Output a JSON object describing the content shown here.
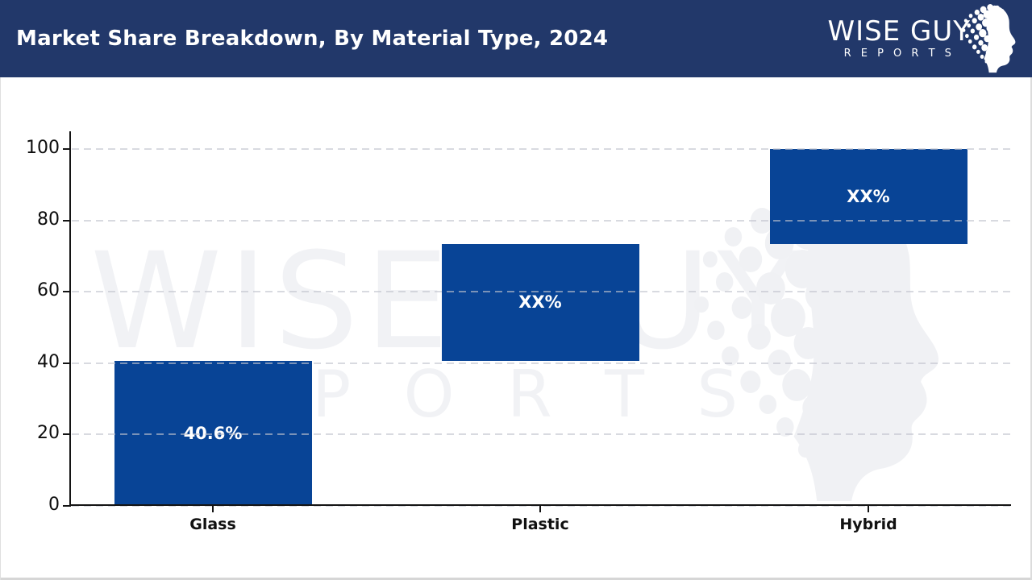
{
  "header": {
    "title": "Market Share Breakdown, By Material Type, 2024",
    "logo": {
      "line1": "WISE GUY",
      "line2": "R E P O R T S"
    }
  },
  "watermark": {
    "line1": "WISE GUY",
    "line2": "R E P O R T S"
  },
  "chart_data": {
    "type": "bar",
    "subtype": "waterfall",
    "title": "Market Share Breakdown, By Material Type, 2024",
    "categories": [
      "Glass",
      "Plastic",
      "Hybrid"
    ],
    "segments": [
      {
        "category": "Glass",
        "start": 0,
        "end": 40.6,
        "value": 40.6,
        "label": "40.6%"
      },
      {
        "category": "Plastic",
        "start": 40.6,
        "end": 73.4,
        "value": 32.8,
        "label": "XX%"
      },
      {
        "category": "Hybrid",
        "start": 73.4,
        "end": 100,
        "value": 26.6,
        "label": "XX%"
      }
    ],
    "xlabel": "",
    "ylabel": "",
    "yticks": [
      0,
      20,
      40,
      60,
      80,
      100
    ],
    "ylim": [
      0,
      100
    ],
    "grid": "horizontal-dashed",
    "legend": "none",
    "bar_color": "#084496",
    "label_color": "#FFFFFF"
  },
  "colors": {
    "header_bg": "#22386A",
    "title_text": "#FFFFFF",
    "bar": "#084496",
    "axis": "#141414",
    "gridline": "#D9D9D9",
    "watermark": "#F1F2F5",
    "edge_hairline": "#D6D6D6"
  }
}
